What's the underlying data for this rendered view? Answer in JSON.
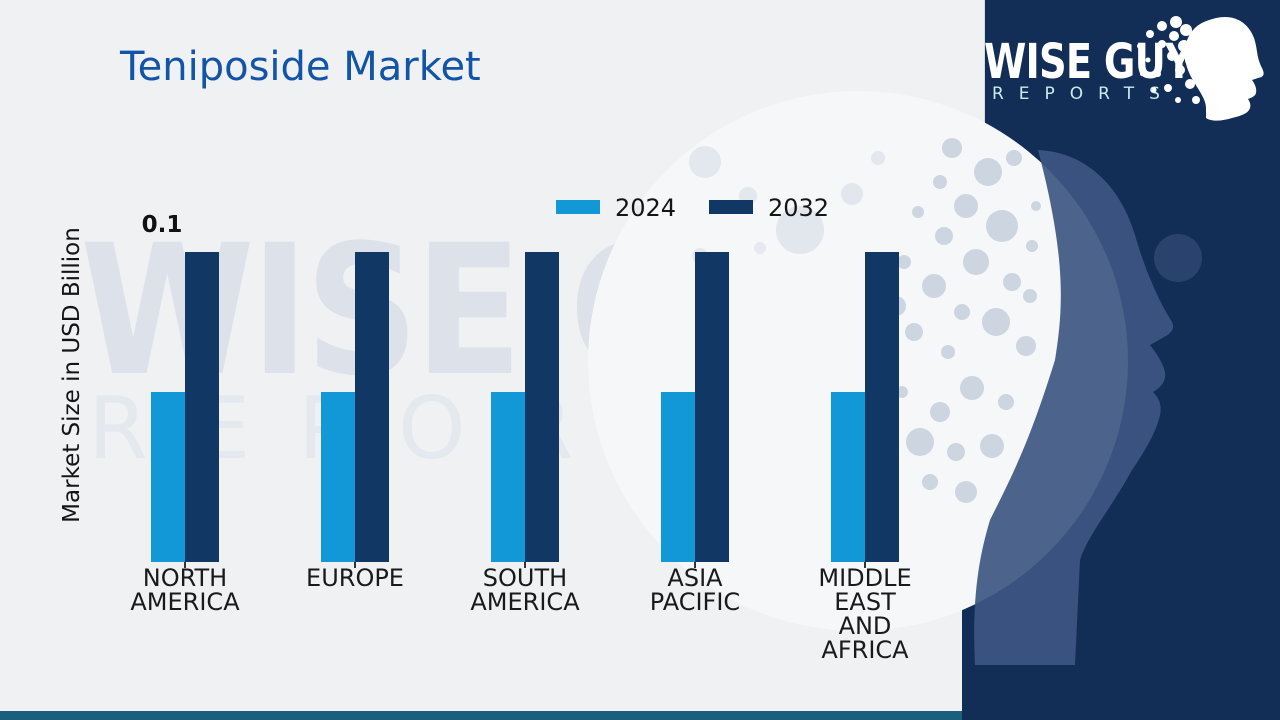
{
  "header": {
    "title": "Teniposide Market"
  },
  "logo": {
    "title": "WISE GUY",
    "subtitle": "REPORTS"
  },
  "watermark": {
    "line1": "WISE GUY",
    "line2": "REPORTS"
  },
  "colors": {
    "background": "#f0f1f3",
    "title_blue": "#1254a5",
    "series_2024_blue": "#1297d7",
    "series_2032_navy": "#113765",
    "band_navy": "#122e57",
    "footer_teal": "#1b5f7e",
    "watermark_gray": "#dce1ea"
  },
  "chart_data": {
    "type": "bar",
    "title": "Teniposide Market",
    "categories": [
      "NORTH AMERICA",
      "EUROPE",
      "SOUTH AMERICA",
      "ASIA PACIFIC",
      "MIDDLE EAST AND AFRICA"
    ],
    "categories_display": [
      [
        "NORTH",
        "AMERICA"
      ],
      [
        "EUROPE"
      ],
      [
        "SOUTH",
        "AMERICA"
      ],
      [
        "ASIA",
        "PACIFIC"
      ],
      [
        "MIDDLE",
        "EAST",
        "AND",
        "AFRICA"
      ]
    ],
    "series": [
      {
        "name": "2024",
        "color": "#1297d7",
        "values": [
          0.055,
          0.055,
          0.055,
          0.055,
          0.055
        ]
      },
      {
        "name": "2032",
        "color": "#113765",
        "values": [
          0.1,
          0.1,
          0.1,
          0.1,
          0.1
        ]
      }
    ],
    "xlabel": "",
    "ylabel": "Market Size in USD Billion",
    "ylim": [
      0,
      0.1
    ],
    "value_label": "0.1",
    "grid": false,
    "legend_position": "top-center"
  }
}
